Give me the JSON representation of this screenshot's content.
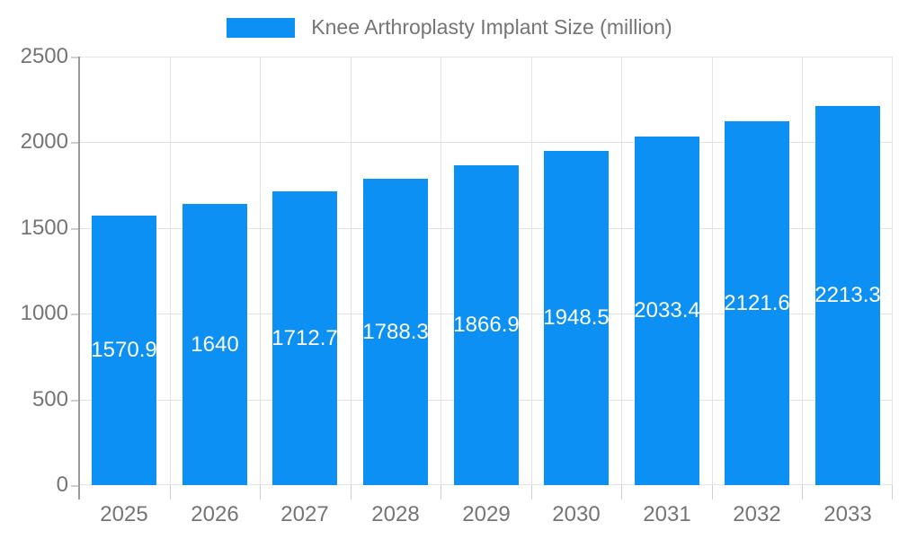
{
  "chart_data": {
    "type": "bar",
    "title": "Knee Arthroplasty Implant Size (million)",
    "categories": [
      "2025",
      "2026",
      "2027",
      "2028",
      "2029",
      "2030",
      "2031",
      "2032",
      "2033"
    ],
    "values": [
      1570.9,
      1640,
      1712.7,
      1788.3,
      1866.9,
      1948.5,
      2033.4,
      2121.6,
      2213.3
    ],
    "xlabel": "",
    "ylabel": "",
    "ylim": [
      0,
      2500
    ],
    "yticks": [
      0,
      500,
      1000,
      1500,
      2000,
      2500
    ],
    "grid": true,
    "legend_position": "top-center",
    "value_labels": "inside-center",
    "colors": {
      "bar": "#0d90f3",
      "grid": "#e3e3e3",
      "axis_line": "#9a9a9a",
      "tick": "#cfcfcf",
      "text": "#757575",
      "value_text": "#ffffff",
      "background": "#ffffff"
    }
  }
}
